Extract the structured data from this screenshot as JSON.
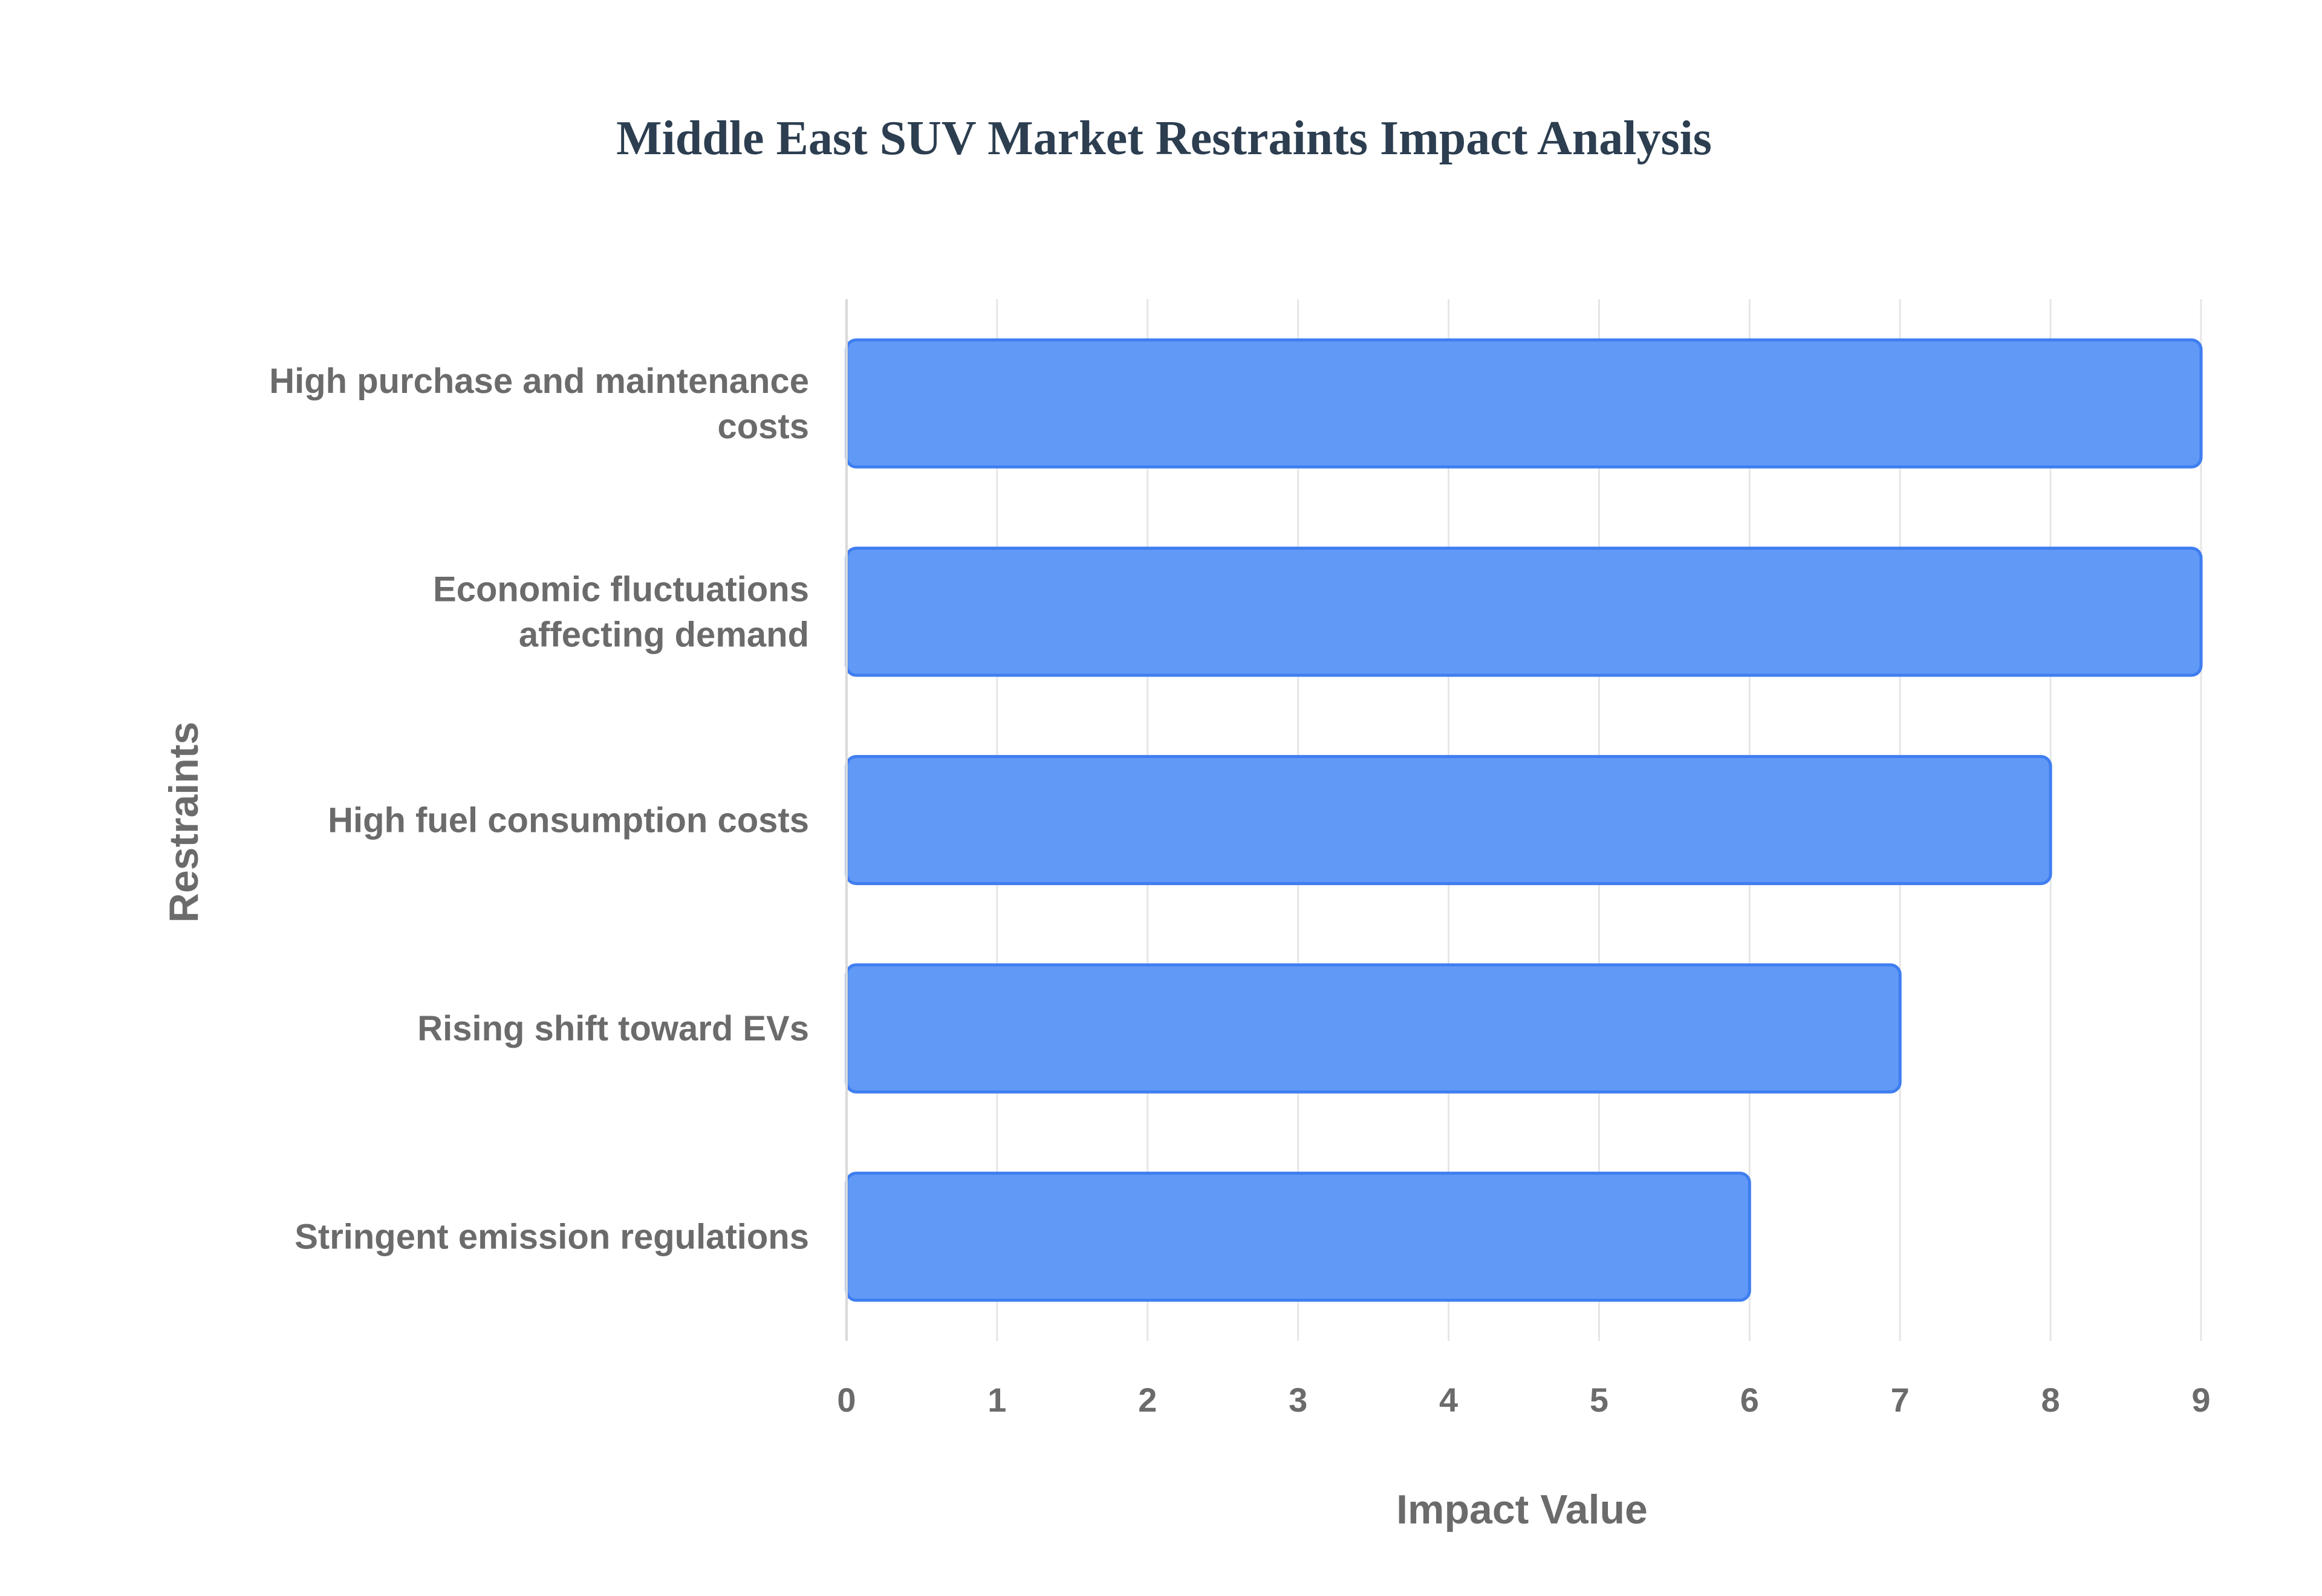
{
  "chart_data": {
    "type": "bar",
    "orientation": "horizontal",
    "title": "Middle East SUV Market Restraints Impact Analysis",
    "xlabel": "Impact Value",
    "ylabel": "Restraints",
    "xlim": [
      0,
      9
    ],
    "xticks": [
      "0",
      "1",
      "2",
      "3",
      "4",
      "5",
      "6",
      "7",
      "8",
      "9"
    ],
    "grid": true,
    "categories": [
      [
        "High purchase and maintenance",
        "costs"
      ],
      [
        "Economic fluctuations",
        "affecting demand"
      ],
      [
        "High fuel consumption costs"
      ],
      [
        "Rising shift toward EVs"
      ],
      [
        "Stringent emission regulations"
      ]
    ],
    "values": [
      9,
      9,
      8,
      7,
      6
    ],
    "bar_color": "#6199f6",
    "bar_edge_color": "#3f7ef0"
  }
}
